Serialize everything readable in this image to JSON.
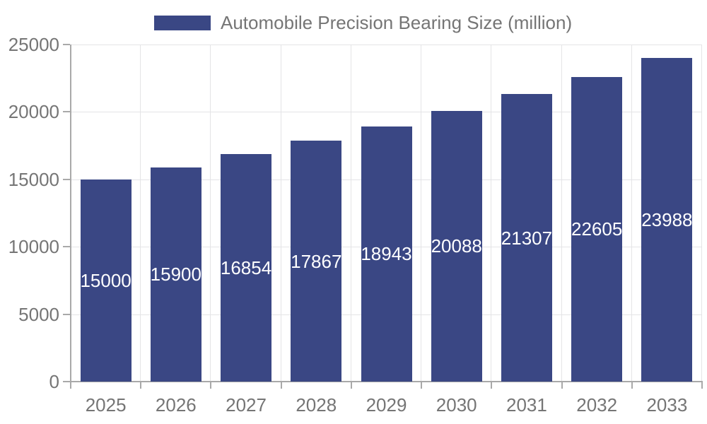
{
  "chart_data": {
    "type": "bar",
    "title": "",
    "legend": {
      "label": "Automobile Precision Bearing Size (million)",
      "position": "top-center"
    },
    "categories": [
      "2025",
      "2026",
      "2027",
      "2028",
      "2029",
      "2030",
      "2031",
      "2032",
      "2033"
    ],
    "series": [
      {
        "name": "Automobile Precision Bearing Size (million)",
        "values": [
          15000,
          15900,
          16854,
          17867,
          18943,
          20088,
          21307,
          22605,
          23988
        ]
      }
    ],
    "value_labels": [
      "15000",
      "15900",
      "16854",
      "17867",
      "18943",
      "20088",
      "21307",
      "22605",
      "23988"
    ],
    "xlabel": "",
    "ylabel": "",
    "ylim": [
      0,
      25000
    ],
    "ytick_step": 5000,
    "ytick_labels": [
      "0",
      "5000",
      "10000",
      "15000",
      "20000",
      "25000"
    ],
    "grid": true,
    "colors": {
      "bar": "#3A4784",
      "bar_value_text": "#FFFFFF",
      "axis_text": "#757575",
      "gridline": "#E4E4E6",
      "axis_line": "#A9A9A9",
      "tick_mark": "#A9A9A9",
      "background": "#FFFFFF"
    }
  }
}
